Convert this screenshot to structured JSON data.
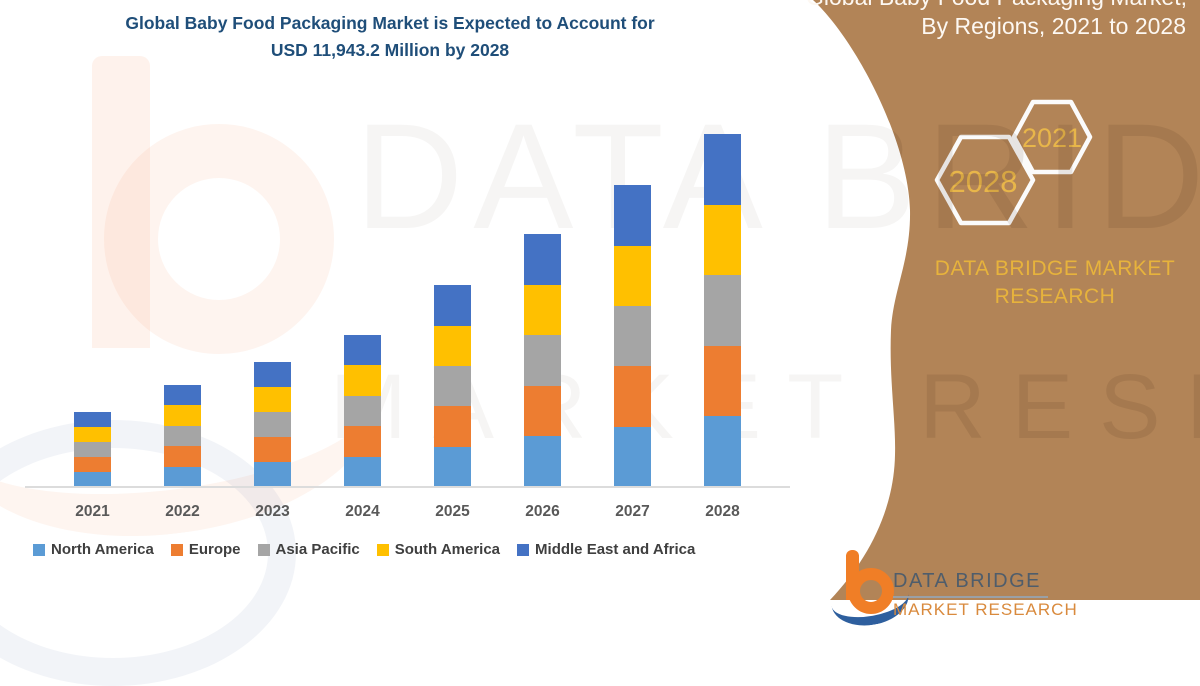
{
  "title": {
    "line1": "Global Baby Food Packaging Market is Expected to Account for",
    "line2": "USD 11,943.2 Million by 2028"
  },
  "panel": {
    "heading_line1": "Global Baby Food Packaging Market,",
    "heading_line2": "By Regions, 2021 to 2028",
    "hex_labels": [
      "2028",
      "2021"
    ],
    "brand_line1": "DATA BRIDGE MARKET",
    "brand_line2": "RESEARCH"
  },
  "watermark": {
    "line1": "DATA BRIDGE",
    "line2": "MARKET RESEARCH"
  },
  "footer_logo": {
    "text": "DATA BRIDGE",
    "subtext": "MARKET RESEARCH"
  },
  "colors": {
    "panel_brown": "#b28457",
    "title_blue": "#1f4e79",
    "gold": "#e7b33c",
    "axis_gray": "#595959",
    "baseline_gray": "#dcdcdc",
    "hex_stroke_white": "#fbfbfb"
  },
  "chart_data": {
    "type": "bar",
    "stacked": true,
    "unit": "USD Million",
    "title": "Global Baby Food Packaging Market is Expected to Account for USD 11,943.2 Million by 2028",
    "categories": [
      "2021",
      "2022",
      "2023",
      "2024",
      "2025",
      "2026",
      "2027",
      "2028"
    ],
    "series": [
      {
        "name": "North America",
        "color": "#5B9BD5",
        "values": [
          509.0,
          692.2,
          848.2,
          1031.4,
          1364.0,
          1710.0,
          2042.6,
          2388.6
        ]
      },
      {
        "name": "Europe",
        "color": "#ED7D31",
        "values": [
          509.0,
          692.2,
          848.2,
          1031.4,
          1364.0,
          1710.0,
          2042.6,
          2388.6
        ]
      },
      {
        "name": "Asia Pacific",
        "color": "#A5A5A5",
        "values": [
          509.0,
          692.2,
          848.2,
          1031.4,
          1364.0,
          1710.0,
          2042.6,
          2388.6
        ]
      },
      {
        "name": "South America",
        "color": "#FFC000",
        "values": [
          509.0,
          692.2,
          848.2,
          1031.4,
          1364.0,
          1710.0,
          2042.6,
          2388.6
        ]
      },
      {
        "name": "Middle East and Africa",
        "color": "#4472C4",
        "values": [
          509.0,
          692.2,
          848.2,
          1031.4,
          1364.0,
          1710.0,
          2042.6,
          2388.8
        ]
      }
    ],
    "totals": [
      2545.0,
      3461.0,
      4241.0,
      5157.0,
      6820.0,
      8550.0,
      10213.0,
      11943.2
    ],
    "values_note": "No y-axis shown; values estimated from bar heights, anchored to stated 2028 total of USD 11,943.2 Million",
    "ylim": [
      0,
      12600
    ],
    "xlabel": "",
    "ylabel": "",
    "grid": false,
    "y_axis_visible": false,
    "legend_position": "bottom"
  }
}
